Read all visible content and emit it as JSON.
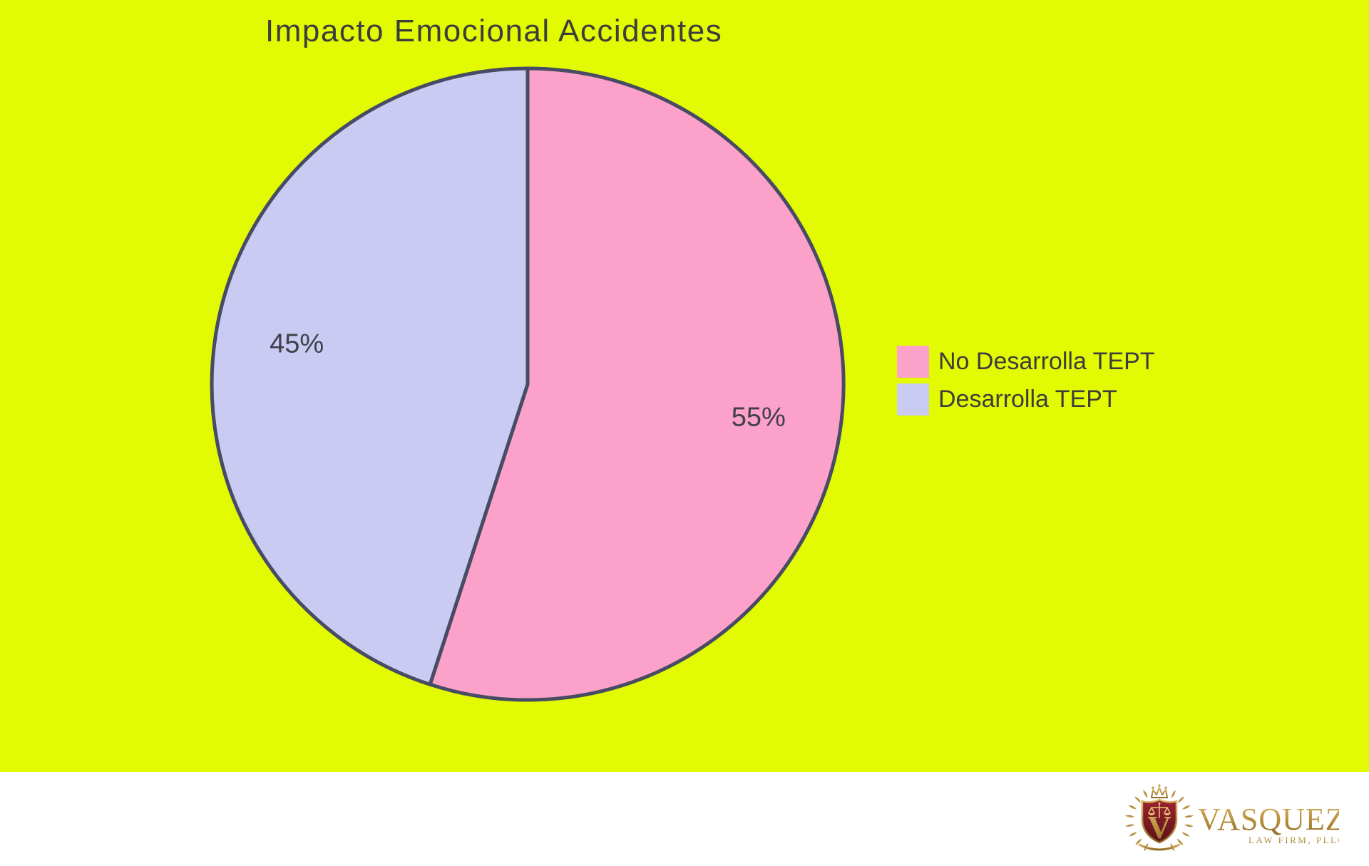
{
  "chart_data": {
    "type": "pie",
    "title": "Impacto Emocional Accidentes",
    "background": "#E2FB02",
    "stroke_color": "#474B63",
    "stroke_width": 5,
    "legend_position": "right",
    "start_angle": "12 o'clock",
    "direction": "clockwise",
    "slices": [
      {
        "label": "No Desarrolla TEPT",
        "value": 55,
        "pct_label": "55%",
        "color": "#FCA1C9"
      },
      {
        "label": "Desarrolla TEPT",
        "value": 45,
        "pct_label": "45%",
        "color": "#CACBF3"
      }
    ]
  },
  "footer": {
    "brand_name": "VASQUEZ",
    "brand_subtitle": "LAW FIRM, PLLC",
    "gold_color": "#B9913F",
    "maroon_color": "#7A1620"
  }
}
